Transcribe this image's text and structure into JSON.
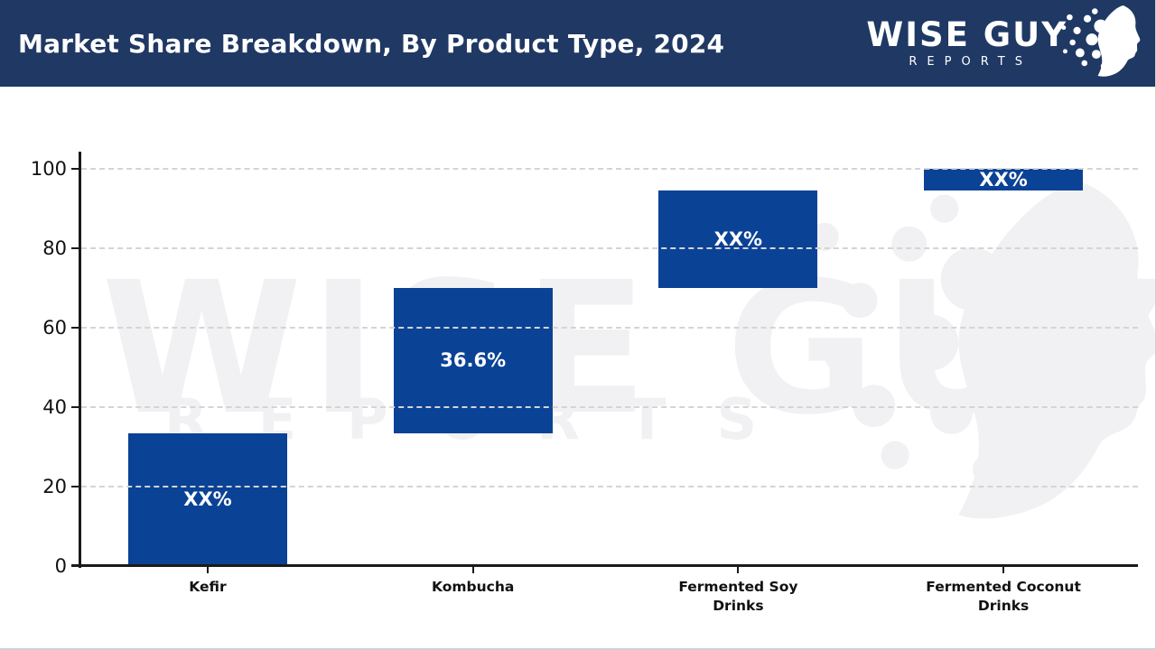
{
  "header": {
    "bg_color": "#1f3864",
    "title": "Market Share Breakdown, By Product Type, 2024",
    "logo": {
      "name": "WISE GUY",
      "sub": "REPORTS"
    }
  },
  "watermark": {
    "line1": "WISE GUY",
    "line2": "REPORTS"
  },
  "chart_data": {
    "type": "bar",
    "subtype": "waterfall-style floating bars",
    "title": "Market Share Breakdown, By Product Type, 2024",
    "xlabel": "",
    "ylabel": "",
    "categories": [
      "Kefir",
      "Kombucha",
      "Fermented Soy Drinks",
      "Fermented Coconut Drinks"
    ],
    "segments": [
      {
        "category": "Kefir",
        "start": 0,
        "end": 33.5,
        "value": 33.5,
        "value_label": "XX%",
        "tick_lines": [
          "Kefir"
        ]
      },
      {
        "category": "Kombucha",
        "start": 33.5,
        "end": 70.1,
        "value": 36.6,
        "value_label": "36.6%",
        "tick_lines": [
          "Kombucha"
        ]
      },
      {
        "category": "Fermented Soy Drinks",
        "start": 70.1,
        "end": 94.6,
        "value": 24.5,
        "value_label": "XX%",
        "tick_lines": [
          "Fermented Soy",
          "Drinks"
        ]
      },
      {
        "category": "Fermented Coconut Drinks",
        "start": 94.6,
        "end": 100,
        "value": 5.4,
        "value_label": "XX%",
        "tick_lines": [
          "Fermented Coconut",
          "Drinks"
        ]
      }
    ],
    "ylim": [
      0,
      100
    ],
    "yticks": [
      0,
      20,
      40,
      60,
      80,
      100
    ],
    "grid": true,
    "gridline_style": "dashed",
    "legend": "none",
    "bar_color": "#0a4296",
    "bar_label_color": "#ffffff",
    "axis_color": "#1a1a1a"
  }
}
